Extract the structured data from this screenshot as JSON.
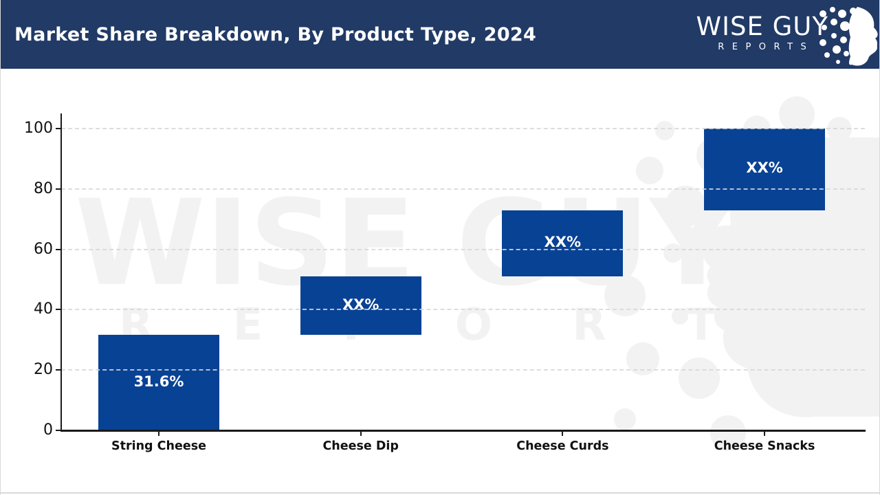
{
  "header": {
    "title": "Market Share Breakdown, By Product Type, 2024",
    "logo": {
      "line1": "WISE GUY",
      "line2": "REPORTS"
    }
  },
  "watermark": {
    "line1": "WISE GUY",
    "line2": "R E P O R T S"
  },
  "colors": {
    "header_bg": "#213a66",
    "bar": "#084294",
    "grid": "#d8d8d8",
    "axis": "#1a1a1a",
    "watermark": "#f2f2f2",
    "bar_label_text": "#ffffff",
    "title_text": "#ffffff"
  },
  "chart_data": {
    "type": "bar",
    "subtype": "waterfall",
    "title": "Market Share Breakdown, By Product Type, 2024",
    "categories": [
      "String Cheese",
      "Cheese Dip",
      "Cheese Curds",
      "Cheese Snacks"
    ],
    "segments": [
      {
        "category": "String Cheese",
        "start": 0,
        "end": 31.6,
        "label": "31.6%"
      },
      {
        "category": "Cheese Dip",
        "start": 31.6,
        "end": 51,
        "label": "XX%"
      },
      {
        "category": "Cheese Curds",
        "start": 51,
        "end": 73,
        "label": "XX%"
      },
      {
        "category": "Cheese Snacks",
        "start": 73,
        "end": 100,
        "label": "XX%"
      }
    ],
    "xlabel": "",
    "ylabel": "",
    "ylim": [
      0,
      100
    ],
    "yticks": [
      0,
      20,
      40,
      60,
      80,
      100
    ],
    "grid": "horizontal-dashed",
    "legend": "none"
  }
}
